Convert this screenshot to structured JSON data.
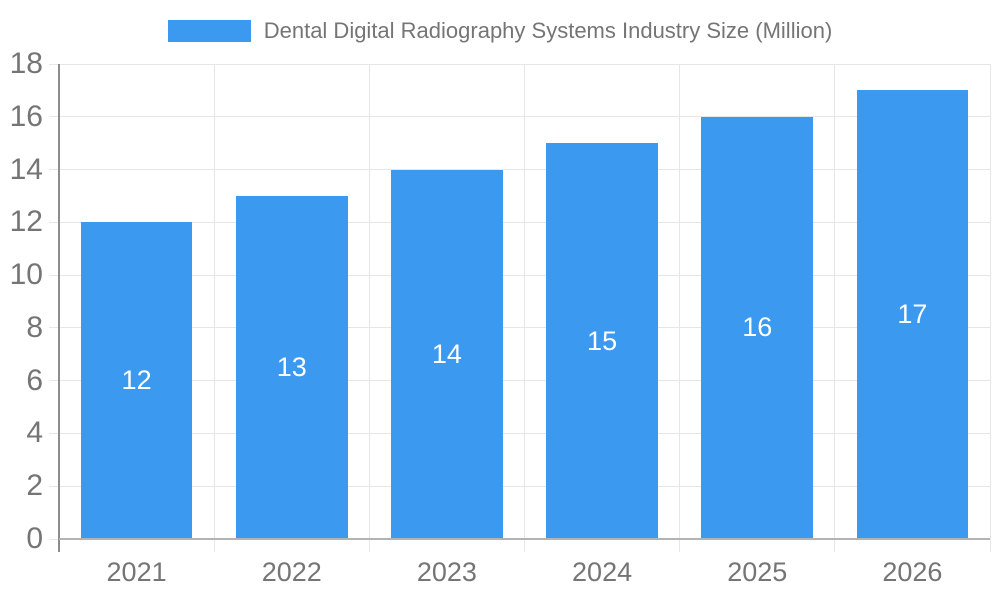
{
  "chart_data": {
    "type": "bar",
    "title": "Dental Digital Radiography Systems Industry Size (Million)",
    "legend_position": "top",
    "categories": [
      "2021",
      "2022",
      "2023",
      "2024",
      "2025",
      "2026"
    ],
    "series": [
      {
        "name": "Dental Digital Radiography Systems Industry Size (Million)",
        "values": [
          12,
          13,
          14,
          15,
          16,
          17
        ]
      }
    ],
    "bar_value_labels": [
      "12",
      "13",
      "14",
      "15",
      "16",
      "17"
    ],
    "xlabel": "",
    "ylabel": "",
    "ylim": [
      0,
      18
    ],
    "yticks": [
      0,
      2,
      4,
      6,
      8,
      10,
      12,
      14,
      16,
      18
    ],
    "grid": true,
    "colors": {
      "bar": "#3b99f0",
      "bar_label": "#ffffff",
      "gridline": "#e6e6e6",
      "separator": "#e6e6e6",
      "axis_line": "#8c8c8c",
      "baseline": "#b3b3b3",
      "tick_label": "#757575",
      "title": "#757575",
      "background": "#ffffff"
    }
  }
}
